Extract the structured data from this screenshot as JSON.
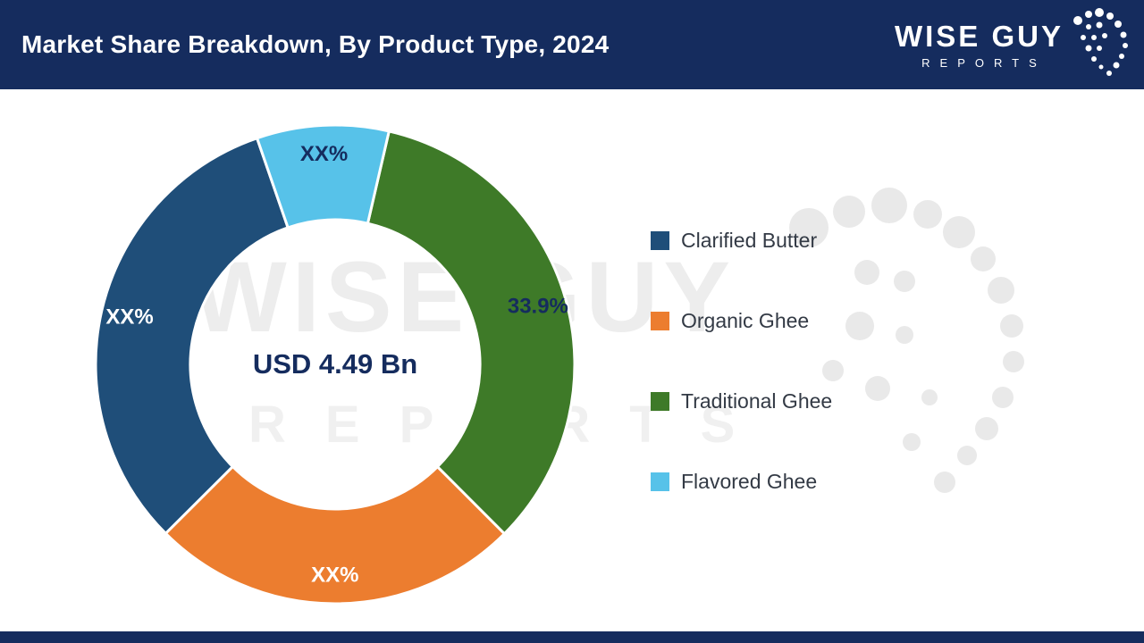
{
  "header": {
    "title": "Market Share Breakdown, By Product Type, 2024",
    "bg_color": "#152c5e",
    "logo": {
      "line1": "WISE GUY",
      "line2": "REPORTS"
    }
  },
  "watermark": {
    "line1": "WISE GUY",
    "line2": "REPORTS"
  },
  "chart_data": {
    "type": "pie",
    "subtype": "donut",
    "title": "Market Share Breakdown, By Product Type, 2024",
    "center_label": "USD 4.49 Bn",
    "start_angle_deg": 77,
    "legend_position": "right",
    "slices": [
      {
        "label": "Traditional Ghee",
        "display_value": "33.9%",
        "value_pct": 33.9,
        "color": "#3e7a28",
        "label_color": "#152c5e"
      },
      {
        "label": "Organic Ghee",
        "display_value": "XX%",
        "value_pct": 25.0,
        "color": "#ec7d2f",
        "label_color": "#ffffff"
      },
      {
        "label": "Clarified Butter",
        "display_value": "XX%",
        "value_pct": 32.2,
        "color": "#1f4e79",
        "label_color": "#ffffff"
      },
      {
        "label": "Flavored Ghee",
        "display_value": "XX%",
        "value_pct": 8.9,
        "color": "#57c2e9",
        "label_color": "#152c5e"
      }
    ],
    "legend": {
      "items": [
        {
          "label": "Clarified Butter",
          "color": "#1f4e79"
        },
        {
          "label": "Organic Ghee",
          "color": "#ec7d2f"
        },
        {
          "label": "Traditional Ghee",
          "color": "#3e7a28"
        },
        {
          "label": "Flavored Ghee",
          "color": "#57c2e9"
        }
      ]
    }
  }
}
